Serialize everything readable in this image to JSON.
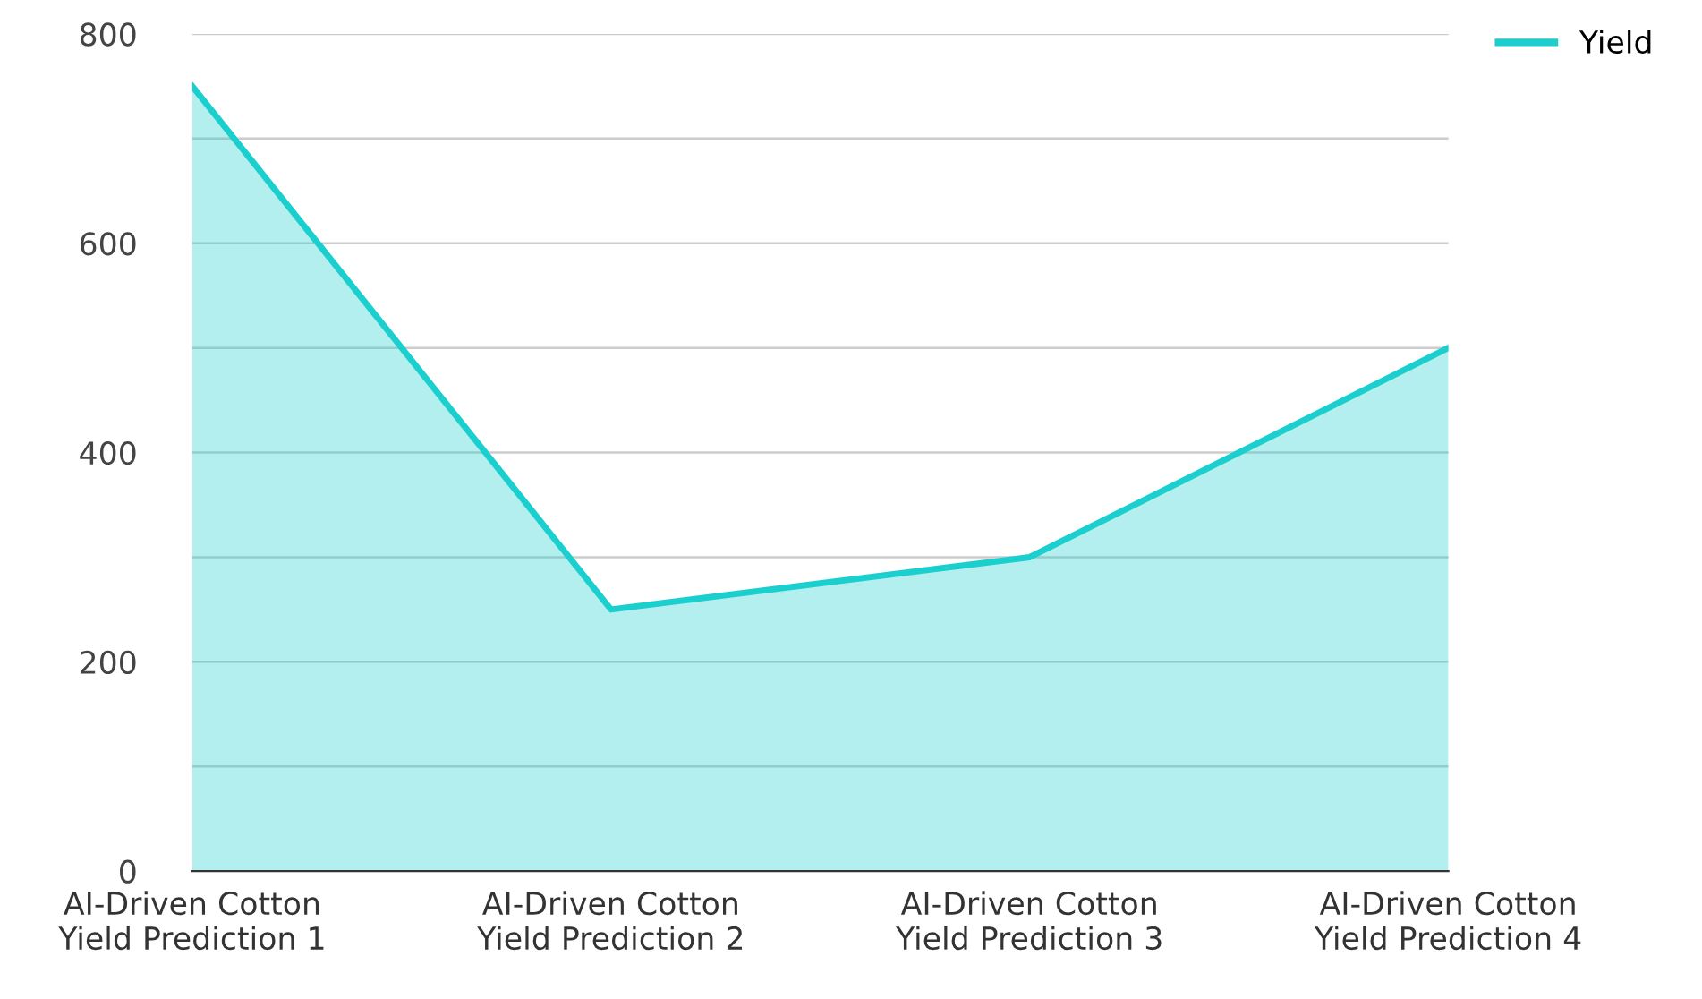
{
  "chart_data": {
    "type": "area",
    "categories": [
      "AI-Driven Cotton\nYield Prediction 1",
      "AI-Driven Cotton\nYield Prediction 2",
      "AI-Driven Cotton\nYield Prediction 3",
      "AI-Driven Cotton\nYield Prediction 4"
    ],
    "series": [
      {
        "name": "Yield",
        "color": "#1ccfcf",
        "values": [
          750,
          250,
          300,
          500
        ]
      }
    ],
    "ylim": [
      0,
      800
    ],
    "yticks": [
      0,
      {
        "value": 100,
        "label": null
      },
      200,
      {
        "value": 300,
        "label": null
      },
      400,
      {
        "value": 500,
        "label": null
      },
      600,
      {
        "value": 700,
        "label": null
      },
      800
    ],
    "grid": "y",
    "legend": "top right",
    "marker": "none",
    "line_style": "solid"
  }
}
